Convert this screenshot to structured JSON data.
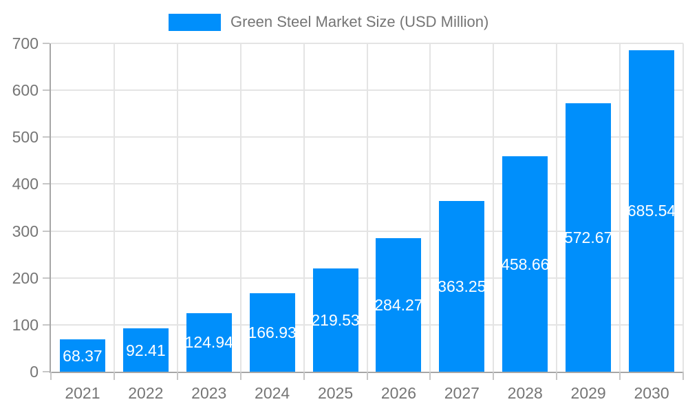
{
  "legend": {
    "label": "Green Steel Market Size (USD Million)"
  },
  "colors": {
    "bar": "#008FFB",
    "grid": "#e4e4e4",
    "axis_line": "#a6a6a6",
    "tick": "#c6c6c6",
    "axis_text": "#757575",
    "bar_label_text": "#ffffff",
    "background": "#ffffff"
  },
  "chart_data": {
    "type": "bar",
    "title": "Green Steel Market Size (USD Million)",
    "series_name": "Green Steel Market Size (USD Million)",
    "categories": [
      "2021",
      "2022",
      "2023",
      "2024",
      "2025",
      "2026",
      "2027",
      "2028",
      "2029",
      "2030"
    ],
    "values": [
      68.37,
      92.41,
      124.94,
      166.93,
      219.53,
      284.27,
      363.25,
      458.66,
      572.67,
      685.54
    ],
    "value_labels": [
      "68.37",
      "92.41",
      "124.94",
      "166.93",
      "219.53",
      "284.27",
      "363.25",
      "458.66",
      "572.67",
      "685.54"
    ],
    "xlabel": "",
    "ylabel": "",
    "ylim": [
      0,
      700
    ],
    "yticks": [
      0,
      100,
      200,
      300,
      400,
      500,
      600,
      700
    ],
    "grid": true,
    "legend_position": "top-center",
    "bar_label_position": "inside-center"
  }
}
